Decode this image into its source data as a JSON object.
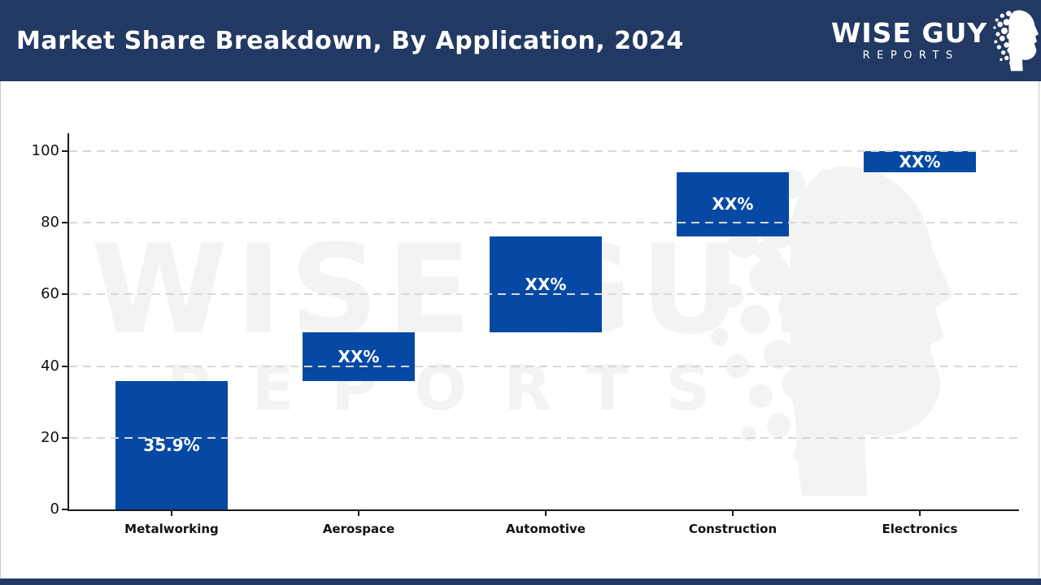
{
  "header": {
    "title": "Market Share Breakdown, By Application, 2024",
    "logo": {
      "brand": "WISE GUY",
      "sub": "REPORTS"
    }
  },
  "watermark": {
    "brand": "WISE GUY",
    "sub": "REPORTS"
  },
  "colors": {
    "header_bg": "#223a63",
    "footer_bg": "#223a63",
    "bar": "#0549a4",
    "grid": "#d8d8d8",
    "axis": "#1a1a1a",
    "bar_label_text": "#ffffff",
    "watermark": "#f3f3f3",
    "sheet_bg": "#ffffff"
  },
  "chart_data": {
    "type": "bar",
    "subtype": "waterfall",
    "title": "Market Share Breakdown, By Application, 2024",
    "categories": [
      "Metalworking",
      "Aerospace",
      "Automotive",
      "Construction",
      "Electronics"
    ],
    "segments": [
      {
        "category": "Metalworking",
        "start": 0,
        "end": 35.9,
        "label": "35.9%"
      },
      {
        "category": "Aerospace",
        "start": 35.9,
        "end": 49.4,
        "label": "XX%"
      },
      {
        "category": "Automotive",
        "start": 49.4,
        "end": 76.2,
        "label": "XX%"
      },
      {
        "category": "Construction",
        "start": 76.2,
        "end": 94.1,
        "label": "XX%"
      },
      {
        "category": "Electronics",
        "start": 94.1,
        "end": 100,
        "label": "XX%"
      }
    ],
    "ylim": [
      0,
      100
    ],
    "yticks": [
      0,
      20,
      40,
      60,
      80,
      100
    ],
    "xlabel": "",
    "ylabel": "",
    "grid": "horizontal-dashed",
    "gridlines_above_bars": true,
    "legend": "none"
  }
}
